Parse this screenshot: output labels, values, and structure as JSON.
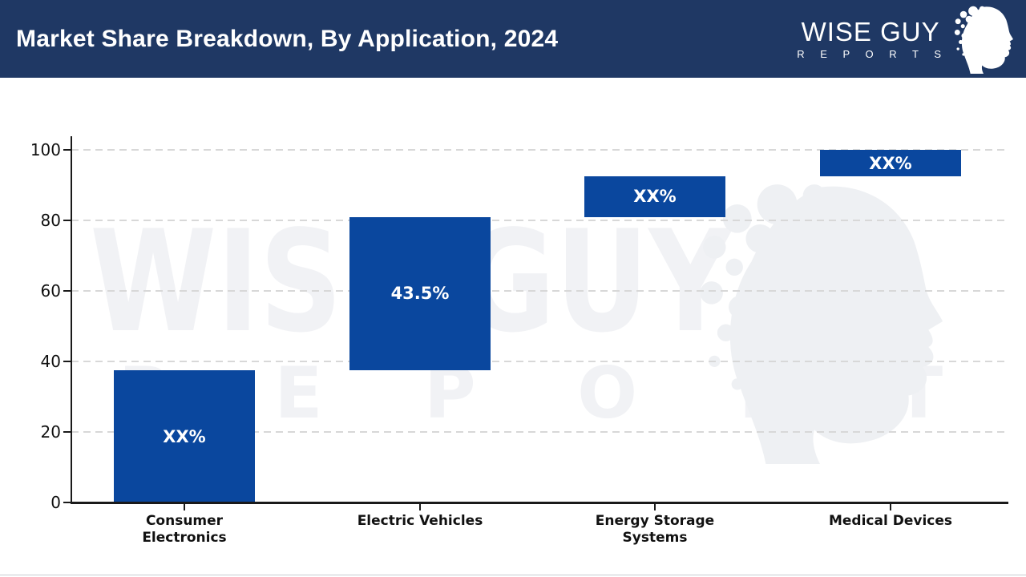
{
  "header": {
    "title": "Market Share Breakdown, By Application, 2024",
    "background_color": "#1f3864",
    "logo": {
      "brand_line1": "WISE GUY",
      "brand_line2": "R E P O R T S"
    }
  },
  "watermark": {
    "line1": "WISE GUY",
    "line2": "R E P O R T S",
    "color": "#f1f2f5"
  },
  "chart_data": {
    "type": "bar",
    "subtype": "waterfall",
    "title": "Market Share Breakdown, By Application, 2024",
    "categories": [
      "Consumer Electronics",
      "Electric Vehicles",
      "Energy Storage Systems",
      "Medical Devices"
    ],
    "category_lines": [
      [
        "Consumer",
        "Electronics"
      ],
      [
        "Electric Vehicles"
      ],
      [
        "Energy Storage",
        "Systems"
      ],
      [
        "Medical Devices"
      ]
    ],
    "segments": [
      {
        "category": "Consumer Electronics",
        "start": 0,
        "end": 37.5,
        "value_label": "XX%"
      },
      {
        "category": "Electric Vehicles",
        "start": 37.5,
        "end": 81,
        "value_label": "43.5%"
      },
      {
        "category": "Energy Storage Systems",
        "start": 81,
        "end": 92.5,
        "value_label": "XX%"
      },
      {
        "category": "Medical Devices",
        "start": 92.5,
        "end": 100,
        "value_label": "XX%"
      }
    ],
    "xlabel": "",
    "ylabel": "",
    "ylim": [
      0,
      100
    ],
    "yticks": [
      0,
      20,
      40,
      60,
      80,
      100
    ],
    "grid": "horizontal-dashed",
    "legend": "none",
    "bar_color": "#0a479e",
    "bar_label_color": "#ffffff",
    "grid_color": "#d8d8d8",
    "axis_color": "#1a1a1a"
  }
}
